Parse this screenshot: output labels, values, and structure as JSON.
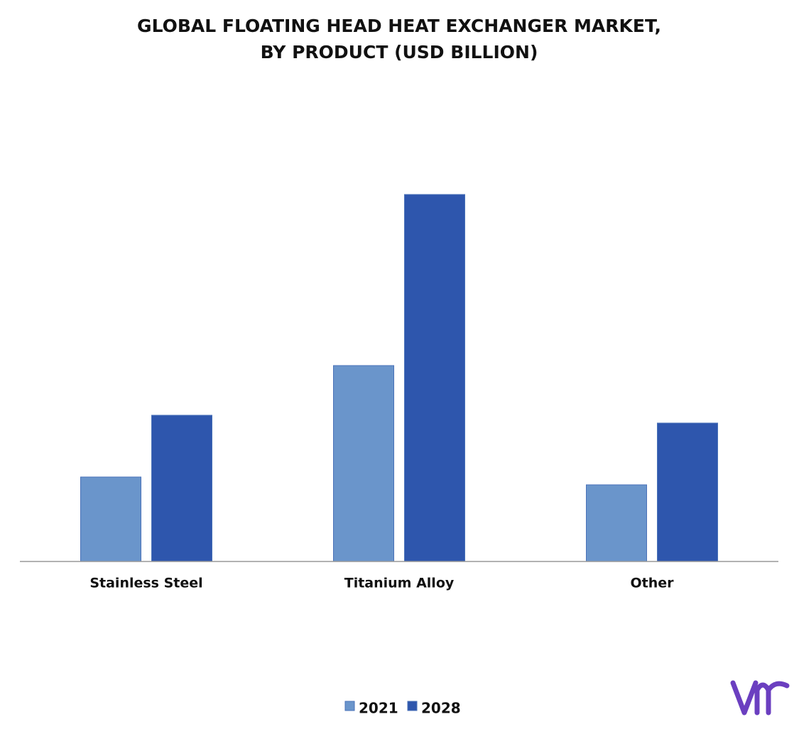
{
  "chart_data": {
    "type": "bar",
    "title": [
      "GLOBAL FLOATING HEAD HEAT EXCHANGER MARKET,",
      "BY PRODUCT (USD BILLION)"
    ],
    "categories": [
      "Stainless Steel",
      "Titanium Alloy",
      "Other"
    ],
    "series": [
      {
        "name": "2021",
        "color": "#6a95cb",
        "values": [
          119,
          276,
          108
        ]
      },
      {
        "name": "2028",
        "color": "#2e56ad",
        "values": [
          206,
          517,
          195
        ]
      }
    ],
    "ylim": [
      0,
      600
    ]
  }
}
